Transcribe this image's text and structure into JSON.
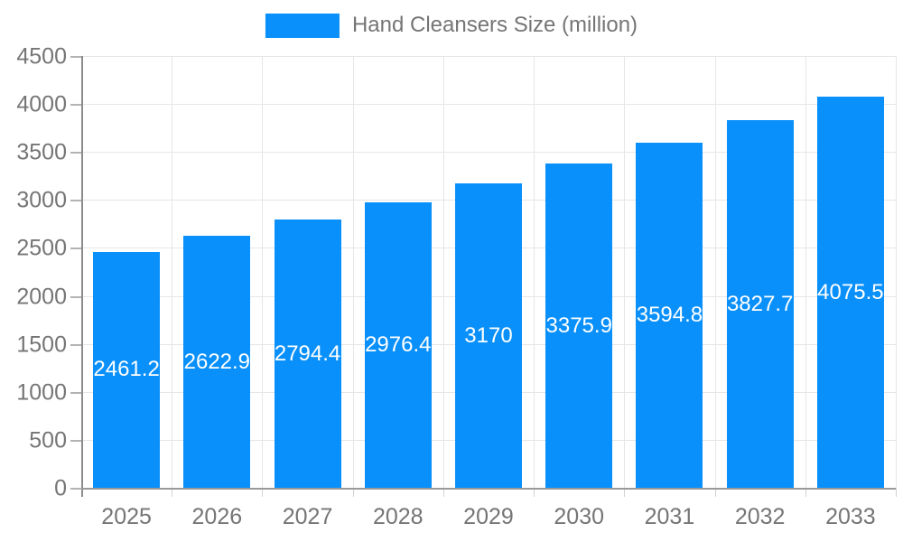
{
  "chart_data": {
    "type": "bar",
    "title": "",
    "legend_label": "Hand Cleansers Size (million)",
    "legend_position": "top",
    "categories": [
      "2025",
      "2026",
      "2027",
      "2028",
      "2029",
      "2030",
      "2031",
      "2032",
      "2033"
    ],
    "series": [
      {
        "name": "Hand Cleansers Size (million)",
        "values": [
          2461.2,
          2622.9,
          2794.4,
          2976.4,
          3170,
          3375.9,
          3594.8,
          3827.7,
          4075.5
        ]
      }
    ],
    "value_labels": [
      "2461.2",
      "2622.9",
      "2794.4",
      "2976.4",
      "3170",
      "3375.9",
      "3594.8",
      "3827.7",
      "4075.5"
    ],
    "ylim": [
      0,
      4500
    ],
    "ytick_step": 500,
    "grid": true,
    "colors": {
      "bar": "#0a90fa",
      "value_label": "#ffffff",
      "axis_text": "#757575",
      "grid_line": "#e6e6e6",
      "axis_line": "#999999",
      "y_axis_line": "#8c8c8c",
      "tick_mark": "#b3b3b3"
    }
  }
}
